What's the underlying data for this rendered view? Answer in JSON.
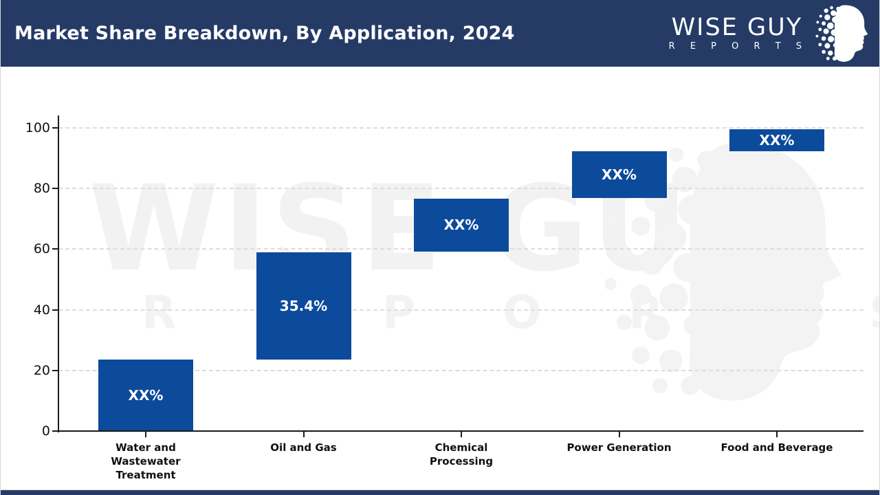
{
  "header": {
    "title": "Market Share Breakdown, By Application, 2024",
    "logo": {
      "brand": "WISE GUY",
      "sub": "R E P O R T S"
    }
  },
  "watermark": {
    "brand": "WISE GUY",
    "sub": "R E P O R T S"
  },
  "colors": {
    "header_bg": "#253B66",
    "footer_bg": "#253B66",
    "bar_fill": "#0C4A9C",
    "bar_label_text": "#FFFFFF",
    "gridline": "#DCDCDC",
    "axis": "#1A1A1A",
    "tick_text": "#111111",
    "watermark_text": "#F2F2F2"
  },
  "chart_data": {
    "type": "bar",
    "subtype": "floating-waterfall",
    "title": "Market Share Breakdown, By Application, 2024",
    "xlabel": "",
    "ylabel": "",
    "ylim": [
      0,
      100
    ],
    "yticks": [
      0,
      20,
      40,
      60,
      80,
      100
    ],
    "grid": "horizontal-dashed",
    "legend": "none",
    "categories": [
      "Water and\nWastewater\nTreatment",
      "Oil and Gas",
      "Chemical\nProcessing",
      "Power Generation",
      "Food and Beverage"
    ],
    "series": [
      {
        "name": "Market Share (%)",
        "segments": [
          {
            "category": "Water and Wastewater Treatment",
            "start": 0,
            "end": 23.5,
            "label": "XX%"
          },
          {
            "category": "Oil and Gas",
            "start": 23.5,
            "end": 58.9,
            "label": "35.4%"
          },
          {
            "category": "Chemical Processing",
            "start": 59.2,
            "end": 76.7,
            "label": "XX%"
          },
          {
            "category": "Power Generation",
            "start": 76.8,
            "end": 92.2,
            "label": "XX%"
          },
          {
            "category": "Food and Beverage",
            "start": 92.2,
            "end": 99.5,
            "label": "XX%"
          }
        ]
      }
    ]
  }
}
